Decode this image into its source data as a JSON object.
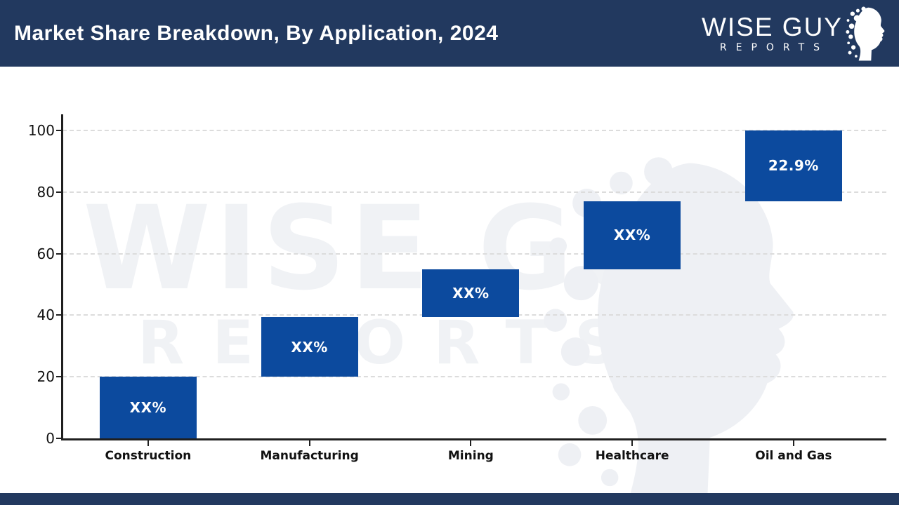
{
  "header": {
    "title": "Market Share Breakdown, By Application, 2024",
    "logo": {
      "line1": "WISE GUY",
      "line2": "REPORTS"
    }
  },
  "watermark": {
    "line1": "WISE GUY",
    "line2": "REPORTS"
  },
  "colors": {
    "navy": "#22395F",
    "bar_blue": "#0C4A9E",
    "grid_gray": "#DCDCDC",
    "axis_black": "#1F1F1F",
    "watermark_gray": "#F0F2F5"
  },
  "icons": {
    "logo_head": "wiseguy-head-icon",
    "watermark_head": "wiseguy-head-watermark-icon"
  },
  "chart_data": {
    "type": "bar",
    "subtype": "waterfall",
    "title": "Market Share Breakdown, By Application, 2024",
    "xlabel": "",
    "ylabel": "",
    "categories": [
      "Construction",
      "Manufacturing",
      "Mining",
      "Healthcare",
      "Oil and Gas"
    ],
    "segments": [
      {
        "category": "Construction",
        "start": 0,
        "end": 20,
        "label": "XX%"
      },
      {
        "category": "Manufacturing",
        "start": 20,
        "end": 39.4,
        "label": "XX%"
      },
      {
        "category": "Mining",
        "start": 39.4,
        "end": 55,
        "label": "XX%"
      },
      {
        "category": "Healthcare",
        "start": 55,
        "end": 77.1,
        "label": "XX%"
      },
      {
        "category": "Oil and Gas",
        "start": 77.1,
        "end": 100,
        "label": "22.9%"
      }
    ],
    "yticks": [
      0,
      20,
      40,
      60,
      80,
      100
    ],
    "ylim": [
      0,
      105
    ],
    "grid": "horizontal-dashed",
    "legend": "none",
    "bar_color": "#0C4A9E",
    "bar_label_color": "#FFFFFF"
  }
}
